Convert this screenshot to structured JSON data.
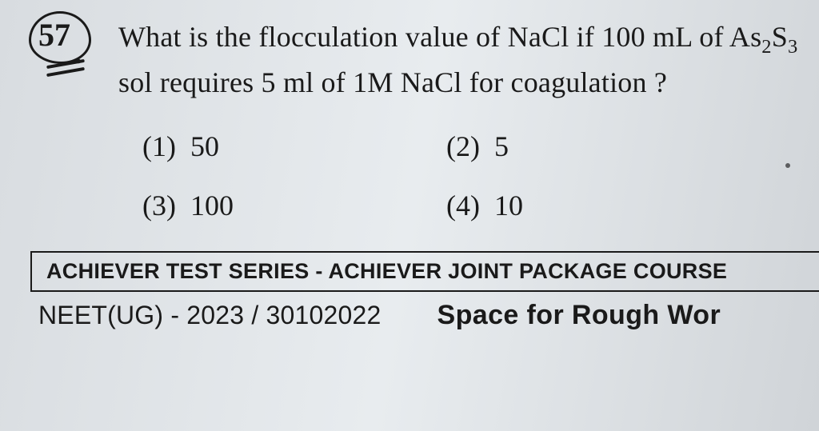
{
  "question": {
    "number": "57",
    "text_parts": {
      "p1": "What is the flocculation value of NaCl if 100 mL of As",
      "sub1": "2",
      "p2": "S",
      "sub2": "3",
      "p3": " sol requires 5 ml of 1M NaCl for coagulation ?"
    }
  },
  "options": [
    {
      "label": "(1)",
      "value": "50"
    },
    {
      "label": "(2)",
      "value": "5"
    },
    {
      "label": "(3)",
      "value": "100"
    },
    {
      "label": "(4)",
      "value": "10"
    }
  ],
  "footer": {
    "series": "ACHIEVER TEST SERIES - ACHIEVER JOINT PACKAGE COURSE",
    "exam_code": "NEET(UG) - 2023 / 30102022",
    "rough": "Space for Rough Wor"
  },
  "style": {
    "circle_color": "#1a1a1a",
    "text_color": "#1a1a1a",
    "bg_gradient_from": "#d8dce0",
    "bg_gradient_to": "#d0d4d8",
    "question_fontsize": 36,
    "option_fontsize": 36,
    "footer_fontsize": 27
  }
}
